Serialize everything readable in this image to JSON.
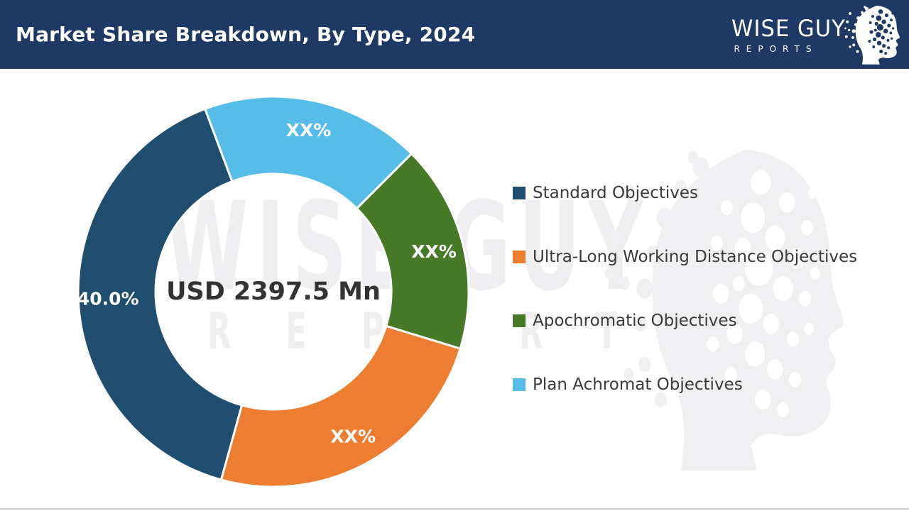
{
  "header": {
    "title": "Market Share Breakdown, By Type, 2024",
    "bg_color": "#1E3A64",
    "logo": {
      "line1": "WISE GUY",
      "line2": "REPORTS"
    }
  },
  "watermark": {
    "line1": "WISE GUY",
    "line2": "REPORTS"
  },
  "chart_data": {
    "type": "pie",
    "donut": true,
    "title": "Market Share Breakdown, By Type, 2024",
    "center_label": "USD 2397.5 Mn",
    "start_angle_deg": 110.5,
    "direction": "counterclockwise",
    "legend_position": "right",
    "categories": [
      "Standard Objectives",
      "Ultra-Long Working Distance Objectives",
      "Apochromatic Objectives",
      "Plan Achromat Objectives"
    ],
    "values_pct": [
      40.0,
      24.6,
      17.2,
      18.2
    ],
    "labels": [
      "40.0%",
      "XX%",
      "XX%",
      "XX%"
    ],
    "colors": [
      "#1F4E6F",
      "#EC7D31",
      "#477A28",
      "#56BDE8"
    ]
  }
}
